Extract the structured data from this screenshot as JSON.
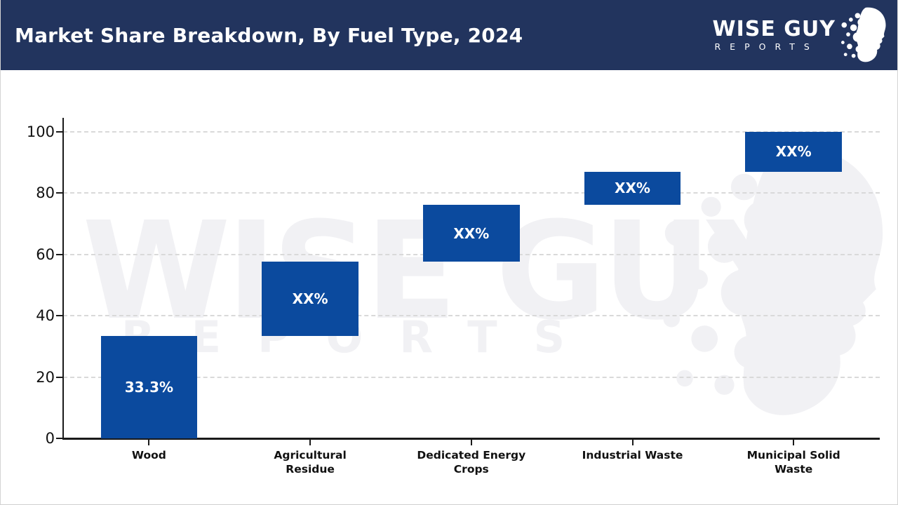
{
  "header": {
    "title": "Market Share Breakdown, By Fuel Type, 2024"
  },
  "brand": {
    "name": "WISE GUY",
    "tagline": "REPORTS"
  },
  "watermark": {
    "line1": "WISE GUY",
    "line2": "REPORTS"
  },
  "colors": {
    "header_bg": "#22345e",
    "bar": "#0b4a9e",
    "grid": "#d9d9d9",
    "axis": "#1a1a1a",
    "tick_label": "#111111",
    "value_label": "#ffffff",
    "watermark": "#f1f1f4"
  },
  "chart_data": {
    "type": "bar",
    "subtype": "waterfall",
    "title": "Market Share Breakdown, By Fuel Type, 2024",
    "categories": [
      "Wood",
      "Agricultural Residue",
      "Dedicated Energy Crops",
      "Industrial Waste",
      "Municipal Solid Waste"
    ],
    "category_label_lines": [
      [
        "Wood"
      ],
      [
        "Agricultural",
        "Residue"
      ],
      [
        "Dedicated Energy",
        "Crops"
      ],
      [
        "Industrial Waste"
      ],
      [
        "Municipal Solid",
        "Waste"
      ]
    ],
    "segments": [
      {
        "category": "Wood",
        "start": 0,
        "end": 33.3,
        "label": "33.3%"
      },
      {
        "category": "Agricultural Residue",
        "start": 33.3,
        "end": 57.5,
        "label": "XX%"
      },
      {
        "category": "Dedicated Energy Crops",
        "start": 57.5,
        "end": 76.2,
        "label": "XX%"
      },
      {
        "category": "Industrial Waste",
        "start": 76.2,
        "end": 86.9,
        "label": "XX%"
      },
      {
        "category": "Municipal Solid Waste",
        "start": 86.9,
        "end": 100,
        "label": "XX%"
      }
    ],
    "xlabel": "",
    "ylabel": "",
    "ylim": [
      0,
      100
    ],
    "yticks": [
      0,
      20,
      40,
      60,
      80,
      100
    ],
    "grid": "horizontal-dashed",
    "legend": "none",
    "bar_color": "#0b4a9e",
    "bar_label_color": "#ffffff"
  }
}
